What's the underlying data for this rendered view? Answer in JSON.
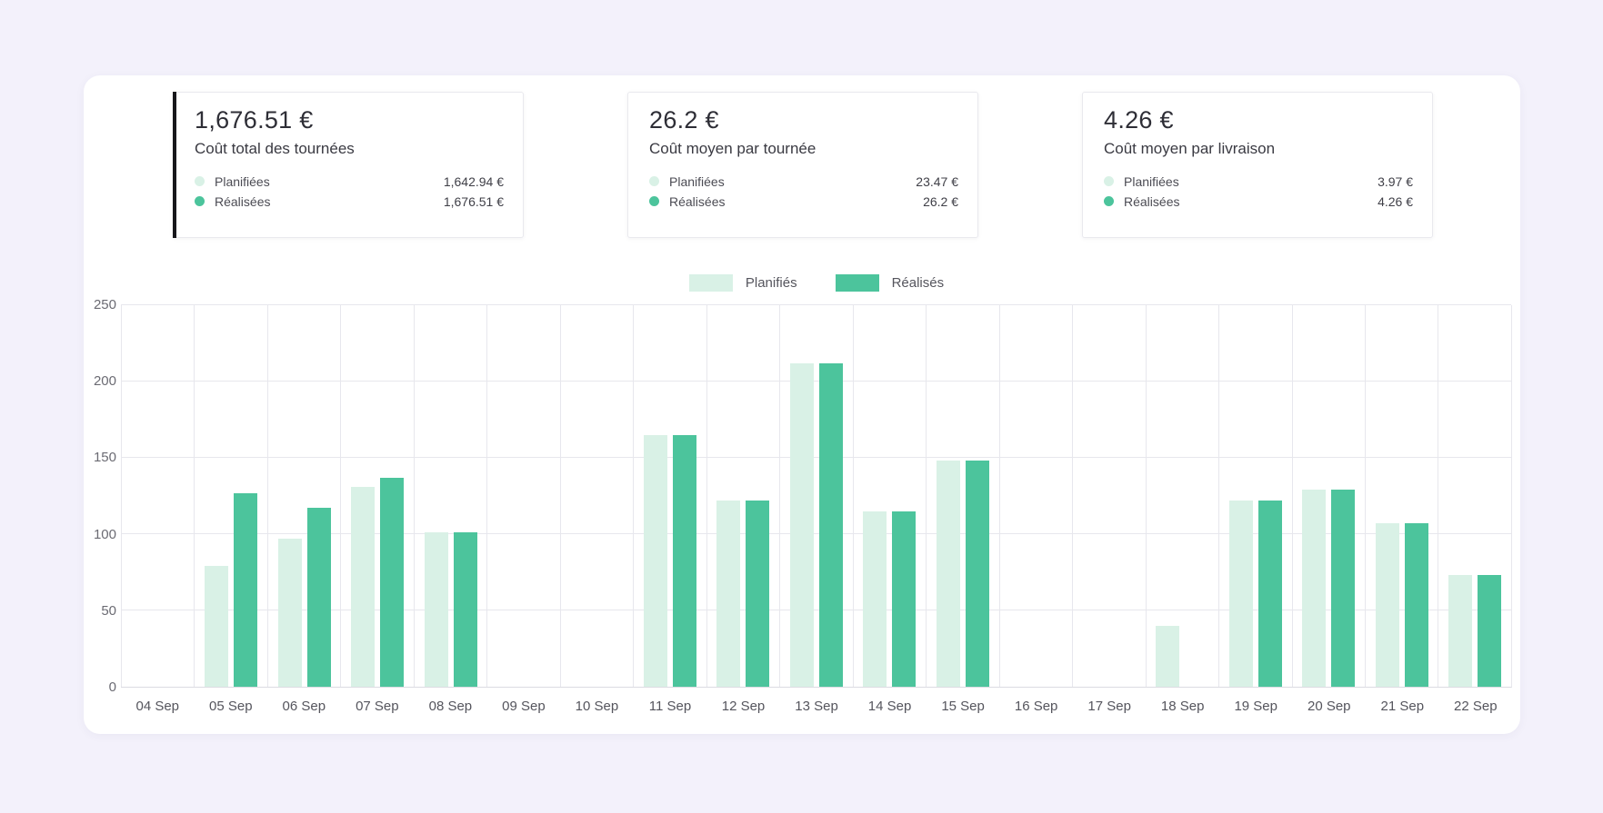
{
  "theme": {
    "background": "#f3f1fb",
    "panel_bg": "#ffffff",
    "card_border": "#e9e9ee",
    "accent_bar": "#17171b",
    "planned_color": "#d9f1e6",
    "realized_color": "#4cc49c",
    "grid_color": "#e7e7ed",
    "axis_text_color": "#6b6b73"
  },
  "stat_cards": [
    {
      "value": "1,676.51 €",
      "title": "Coût total des tournées",
      "active": true,
      "rows": [
        {
          "label": "Planifiées",
          "value": "1,642.94 €"
        },
        {
          "label": "Réalisées",
          "value": "1,676.51 €"
        }
      ]
    },
    {
      "value": "26.2 €",
      "title": "Coût moyen par tournée",
      "active": false,
      "rows": [
        {
          "label": "Planifiées",
          "value": "23.47 €"
        },
        {
          "label": "Réalisées",
          "value": "26.2 €"
        }
      ]
    },
    {
      "value": "4.26 €",
      "title": "Coût moyen par livraison",
      "active": false,
      "rows": [
        {
          "label": "Planifiées",
          "value": "3.97 €"
        },
        {
          "label": "Réalisées",
          "value": "4.26 €"
        }
      ]
    }
  ],
  "chart_data": {
    "type": "bar",
    "categories": [
      "04 Sep",
      "05 Sep",
      "06 Sep",
      "07 Sep",
      "08 Sep",
      "09 Sep",
      "10 Sep",
      "11 Sep",
      "12 Sep",
      "13 Sep",
      "14 Sep",
      "15 Sep",
      "16 Sep",
      "17 Sep",
      "18 Sep",
      "19 Sep",
      "20 Sep",
      "21 Sep",
      "22 Sep"
    ],
    "series": [
      {
        "name": "Planifiés",
        "color": "#d9f1e6",
        "values": [
          0,
          79,
          97,
          131,
          101,
          0,
          0,
          165,
          122,
          212,
          115,
          148,
          0,
          0,
          40,
          122,
          129,
          107,
          73
        ]
      },
      {
        "name": "Réalisés",
        "color": "#4cc49c",
        "values": [
          0,
          127,
          117,
          137,
          101,
          0,
          0,
          165,
          122,
          212,
          115,
          148,
          0,
          0,
          0,
          122,
          129,
          107,
          73
        ]
      }
    ],
    "title": "",
    "xlabel": "",
    "ylabel": "",
    "ylim": [
      0,
      250
    ],
    "yticks": [
      0,
      50,
      100,
      150,
      200,
      250
    ],
    "grid": true,
    "legend_position": "top-center"
  }
}
